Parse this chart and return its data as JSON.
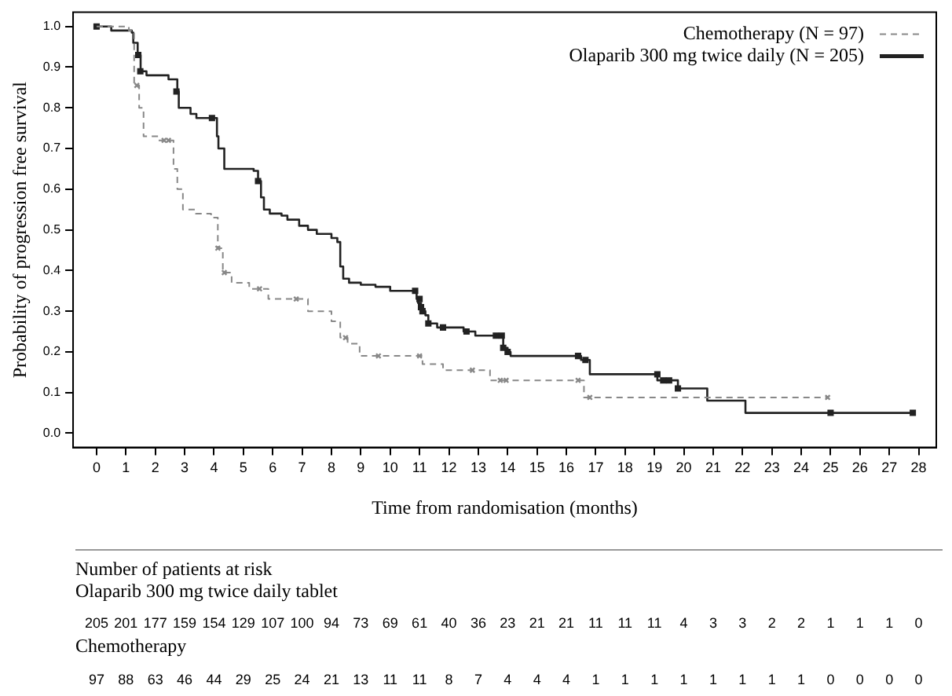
{
  "chart_data": {
    "type": "step",
    "ylabel": "Probability of progression free survival",
    "xlabel": "Time from randomisation (months)",
    "xlim": [
      -0.8,
      28.6
    ],
    "ylim": [
      -0.035,
      1.035
    ],
    "xticks": [
      0,
      1,
      2,
      3,
      4,
      5,
      6,
      7,
      8,
      9,
      10,
      11,
      12,
      13,
      14,
      15,
      16,
      17,
      18,
      19,
      20,
      21,
      22,
      23,
      24,
      25,
      26,
      27,
      28
    ],
    "yticks": [
      {
        "value": 0,
        "label": "0.0"
      },
      {
        "value": 0.1,
        "label": "0.1"
      },
      {
        "value": 0.2,
        "label": "0.2"
      },
      {
        "value": 0.3,
        "label": "0.3"
      },
      {
        "value": 0.4,
        "label": "0.4"
      },
      {
        "value": 0.5,
        "label": "0.5"
      },
      {
        "value": 0.6,
        "label": "0.6"
      },
      {
        "value": 0.7,
        "label": "0.7"
      },
      {
        "value": 0.8,
        "label": "0.8"
      },
      {
        "value": 0.9,
        "label": "0.9"
      },
      {
        "value": 1,
        "label": "1.0"
      }
    ],
    "grid": false,
    "legend": "top right",
    "series": [
      {
        "name": "Chemotherapy (N = 97)",
        "line_style": "dashed",
        "color": "#888888",
        "x": [
          0,
          1.1,
          1.28,
          1.45,
          1.6,
          2.1,
          2.62,
          2.75,
          2.94,
          3.38,
          3.9,
          4.13,
          4.3,
          4.6,
          5.2,
          5.85,
          7.2,
          8.0,
          8.3,
          8.55,
          8.96,
          11.1,
          11.8,
          13.4,
          16.6,
          24.9
        ],
        "values": [
          1,
          0.99,
          0.855,
          0.8,
          0.73,
          0.72,
          0.65,
          0.6,
          0.55,
          0.54,
          0.53,
          0.455,
          0.395,
          0.37,
          0.355,
          0.33,
          0.3,
          0.275,
          0.235,
          0.22,
          0.19,
          0.17,
          0.155,
          0.13,
          0.088,
          0.088
        ]
      },
      {
        "name": "Olaparib 300 mg twice daily (N = 205)",
        "line_style": "solid",
        "color": "#222222",
        "x": [
          0,
          0.5,
          1.2,
          1.25,
          1.4,
          1.5,
          1.7,
          2.45,
          2.75,
          2.8,
          3.2,
          3.4,
          4.1,
          4.15,
          4.35,
          5.35,
          5.5,
          5.6,
          5.7,
          5.9,
          6.3,
          6.5,
          6.9,
          7.2,
          7.5,
          8.0,
          8.2,
          8.3,
          8.4,
          8.6,
          9.0,
          9.5,
          10.0,
          10.9,
          10.95,
          11.05,
          11.1,
          11.2,
          11.3,
          11.6,
          12.5,
          12.9,
          13.85,
          14.0,
          14.1,
          16.5,
          16.8,
          19.1,
          19.8,
          20.8,
          22.1,
          27.8
        ],
        "values": [
          1,
          0.99,
          0.985,
          0.96,
          0.93,
          0.89,
          0.88,
          0.87,
          0.84,
          0.8,
          0.785,
          0.775,
          0.73,
          0.7,
          0.65,
          0.645,
          0.62,
          0.58,
          0.55,
          0.54,
          0.535,
          0.525,
          0.51,
          0.5,
          0.49,
          0.48,
          0.47,
          0.41,
          0.38,
          0.37,
          0.365,
          0.36,
          0.35,
          0.33,
          0.32,
          0.31,
          0.3,
          0.29,
          0.27,
          0.26,
          0.25,
          0.24,
          0.21,
          0.2,
          0.19,
          0.18,
          0.145,
          0.13,
          0.11,
          0.08,
          0.05,
          0.05
        ]
      },
      {
        "type": "scatter",
        "marker": "cross",
        "color": "#888888",
        "x": [
          1.37,
          2.3,
          2.45,
          4.13,
          4.35,
          5.55,
          6.8,
          8.48,
          9.6,
          11.0,
          12.8,
          13.75,
          13.95,
          16.4,
          16.8,
          24.9
        ],
        "values": [
          0.855,
          0.72,
          0.72,
          0.455,
          0.395,
          0.355,
          0.33,
          0.235,
          0.19,
          0.19,
          0.155,
          0.13,
          0.13,
          0.13,
          0.088,
          0.088
        ]
      },
      {
        "type": "scatter",
        "marker": "square",
        "color": "#222222",
        "x": [
          0,
          1.42,
          1.49,
          2.72,
          3.93,
          5.5,
          10.85,
          11.0,
          11.05,
          11.1,
          11.3,
          11.8,
          12.6,
          13.6,
          13.8,
          13.85,
          14.0,
          16.4,
          16.65,
          19.1,
          19.3,
          19.5,
          19.8,
          25.0,
          27.8
        ],
        "values": [
          1,
          0.93,
          0.89,
          0.84,
          0.775,
          0.62,
          0.35,
          0.33,
          0.31,
          0.3,
          0.27,
          0.26,
          0.25,
          0.24,
          0.24,
          0.21,
          0.2,
          0.19,
          0.18,
          0.145,
          0.13,
          0.13,
          0.11,
          0.05,
          0.05
        ]
      }
    ],
    "annotations": [
      "Number of patients at risk",
      "Olaparib 300 mg twice daily tablet",
      "205 201 177 159 154 129 107 100 94 73 69 61 40 36 23 21 21 11 11 11 4 3 3 2 2 1 1 1 0",
      "Chemotherapy",
      "97 88 63 46 44 29 25 24 21 13 11 11 8 7 4 4 4 1 1 1 1 1 1 1 1 0 0 0 0"
    ]
  }
}
